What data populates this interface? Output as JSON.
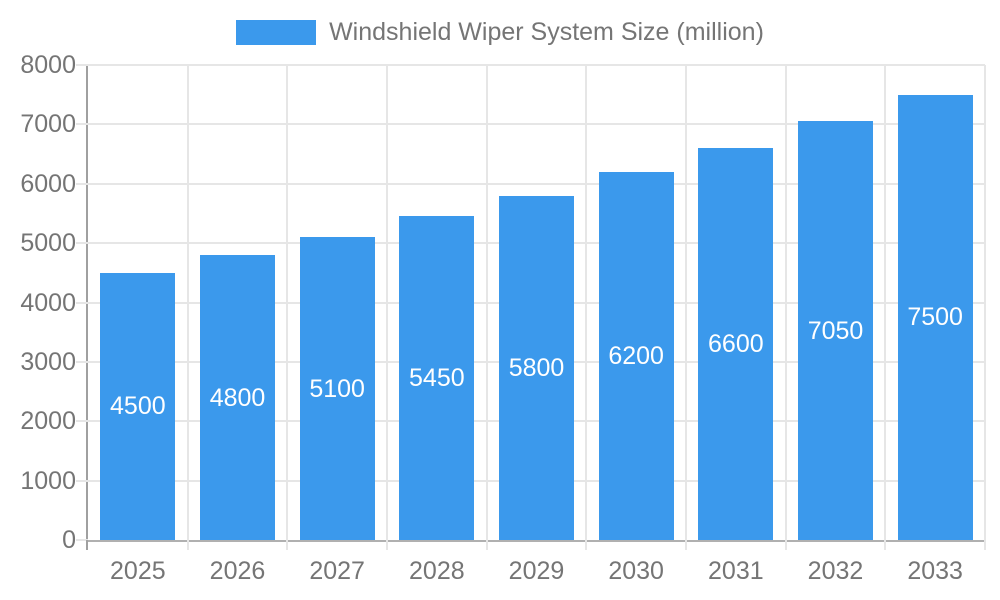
{
  "chart_data": {
    "type": "bar",
    "title": "Windshield Wiper System Size (million)",
    "legend": {
      "label": "Windshield Wiper System Size (million)",
      "position": "top-center"
    },
    "categories": [
      "2025",
      "2026",
      "2027",
      "2028",
      "2029",
      "2030",
      "2031",
      "2032",
      "2033"
    ],
    "values": [
      4500,
      4800,
      5100,
      5450,
      5800,
      6200,
      6600,
      7050,
      7500
    ],
    "xlabel": "",
    "ylabel": "",
    "ylim": [
      0,
      8000
    ],
    "ytick_step": 1000,
    "ytick_labels": [
      "0",
      "1000",
      "2000",
      "3000",
      "4000",
      "5000",
      "6000",
      "7000",
      "8000"
    ],
    "grid": true,
    "bar_value_labels_visible": true,
    "colors": {
      "bar": "#3B99EC",
      "bar_label_text": "#FFFFFF",
      "axis_text": "#757575",
      "gridline": "#E6E6E6",
      "axis_line": "#A0A0A0",
      "background": "#FFFFFF"
    }
  }
}
